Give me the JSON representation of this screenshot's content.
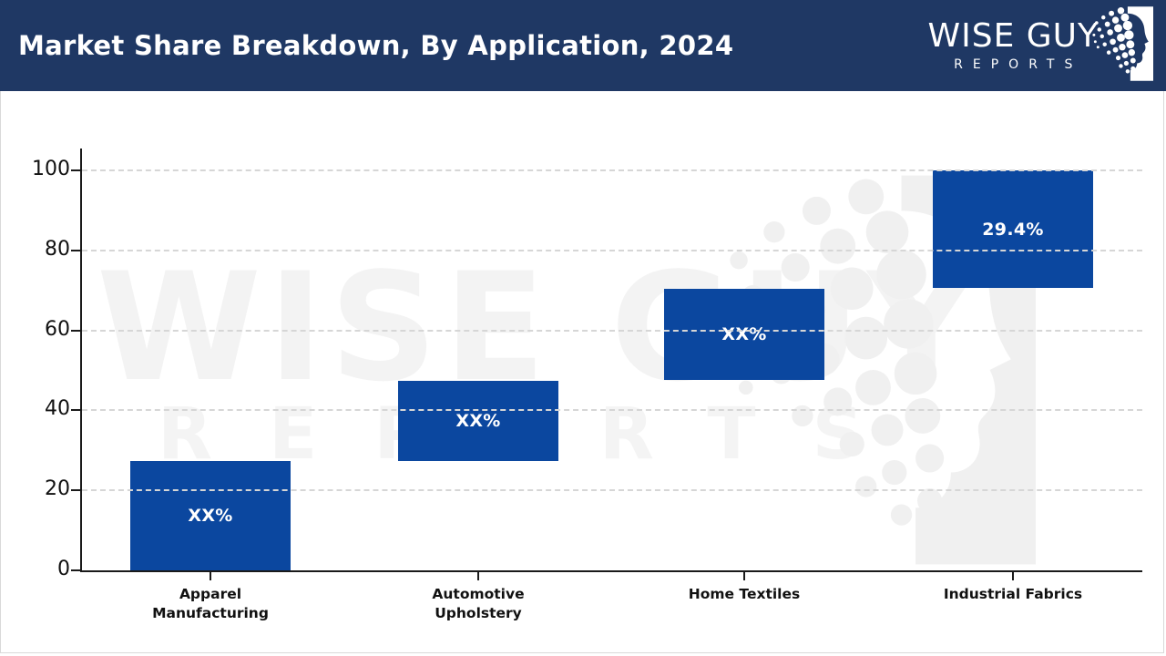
{
  "header": {
    "title": "Market Share Breakdown, By Application, 2024",
    "bg_color": "#1f3864",
    "logo": {
      "line1": "WISE GUY",
      "line2": "REPORTS"
    }
  },
  "watermark": {
    "line1": "WISE GUY",
    "line2": "REPORTS"
  },
  "chart_data": {
    "type": "bar",
    "subtype": "floating-segment waterfall (segments stack to 100%)",
    "title": "Market Share Breakdown, By Application, 2024",
    "categories": [
      "Apparel Manufacturing",
      "Automotive Upholstery",
      "Home Textiles",
      "Industrial Fabrics"
    ],
    "category_label_lines": [
      [
        "Apparel",
        "Manufacturing"
      ],
      [
        "Automotive",
        "Upholstery"
      ],
      [
        "Home Textiles"
      ],
      [
        "Industrial Fabrics"
      ]
    ],
    "segments": [
      {
        "category": "Apparel Manufacturing",
        "start": 0,
        "end": 27.3,
        "label": "XX%"
      },
      {
        "category": "Automotive Upholstery",
        "start": 27.3,
        "end": 47.3,
        "label": "XX%"
      },
      {
        "category": "Home Textiles",
        "start": 47.5,
        "end": 70.5,
        "label": "XX%"
      },
      {
        "category": "Industrial Fabrics",
        "start": 70.6,
        "end": 100,
        "label": "29.4%"
      }
    ],
    "y_axis": {
      "min": 0,
      "max": 100,
      "ticks": [
        0,
        20,
        40,
        60,
        80,
        100
      ]
    },
    "xlabel": "",
    "ylabel": "",
    "grid": "horizontal dashed, drawn over bars",
    "legend": "none",
    "bar_color": "#0b479f",
    "bar_label_color": "#ffffff",
    "axis_color": "#1a1a1a",
    "grid_color": "#d6d6d6"
  },
  "colors": {
    "header_bg": "#1f3864",
    "page_border": "#d9d9d9",
    "watermark_text": "#f3f3f3",
    "watermark_face": "#f0f0f0"
  }
}
